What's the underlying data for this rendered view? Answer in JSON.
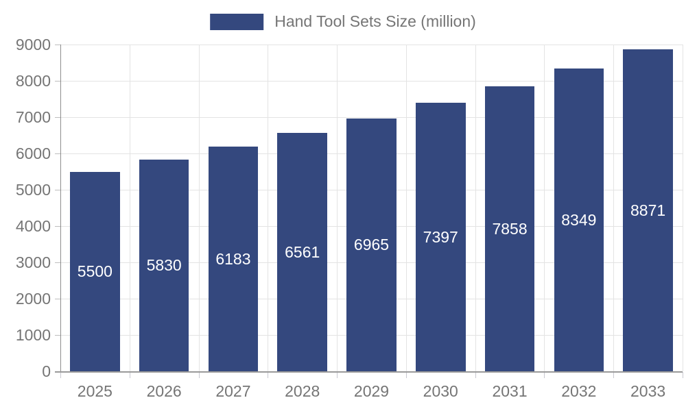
{
  "chart_data": {
    "type": "bar",
    "title": "Hand Tool Sets Size (million)",
    "legend_entries": [
      "Hand Tool Sets Size (million)"
    ],
    "legend_position": "top-center",
    "categories": [
      "2025",
      "2026",
      "2027",
      "2028",
      "2029",
      "2030",
      "2031",
      "2032",
      "2033"
    ],
    "series": [
      {
        "name": "Hand Tool Sets Size (million)",
        "values": [
          5500,
          5830,
          6183,
          6561,
          6965,
          7397,
          7858,
          8349,
          8871
        ]
      }
    ],
    "xlabel": "",
    "ylabel": "",
    "ylim": [
      0,
      9000
    ],
    "ytick_step": 1000,
    "ytick_labels": [
      "0",
      "1000",
      "2000",
      "3000",
      "4000",
      "5000",
      "6000",
      "7000",
      "8000",
      "9000"
    ],
    "grid": true,
    "value_labels_inside_bars": true,
    "colors": {
      "bar": "#34487E",
      "value_label": "#ffffff",
      "axis_text": "#757575",
      "legend_text": "#757575",
      "gridline": "#e3e3e3",
      "axis_line": "#999999",
      "background": "#ffffff"
    }
  }
}
